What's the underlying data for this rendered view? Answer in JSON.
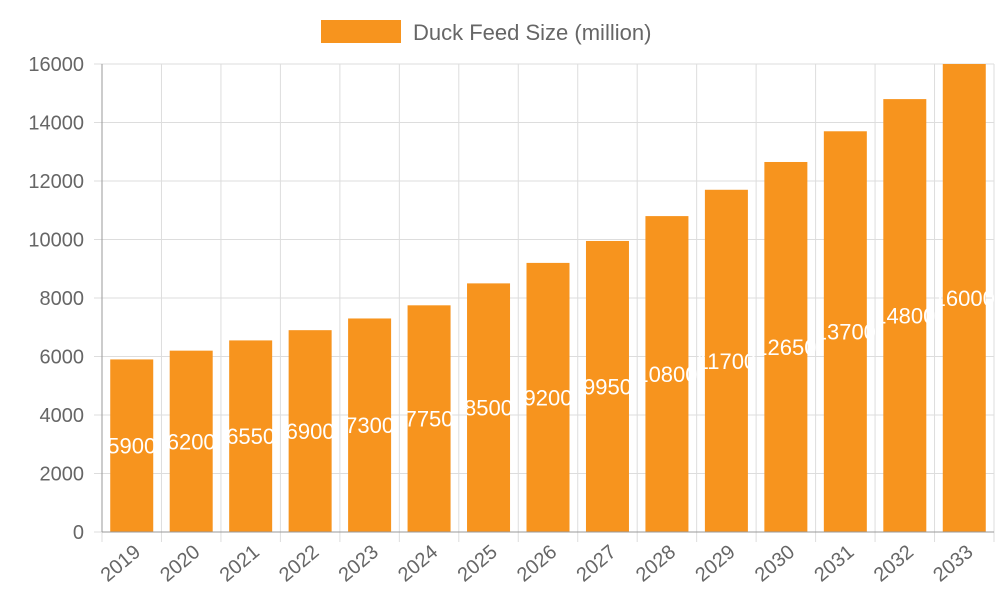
{
  "chart_data": {
    "type": "bar",
    "categories": [
      "2019",
      "2020",
      "2021",
      "2022",
      "2023",
      "2024",
      "2025",
      "2026",
      "2027",
      "2028",
      "2029",
      "2030",
      "2031",
      "2032",
      "2033"
    ],
    "series": [
      {
        "name": "Duck Feed Size (million)",
        "values": [
          5900,
          6200,
          6550,
          6900,
          7300,
          7750,
          8500,
          9200,
          9950,
          10800,
          11700,
          12650,
          13700,
          14800,
          16000
        ],
        "color": "#F7941E"
      }
    ],
    "ylim": [
      0,
      16000
    ],
    "yticks": [
      0,
      2000,
      4000,
      6000,
      8000,
      10000,
      12000,
      14000,
      16000
    ],
    "grid": true,
    "legend": "top",
    "data_labels": true,
    "data_label_color": "#ffffff"
  }
}
